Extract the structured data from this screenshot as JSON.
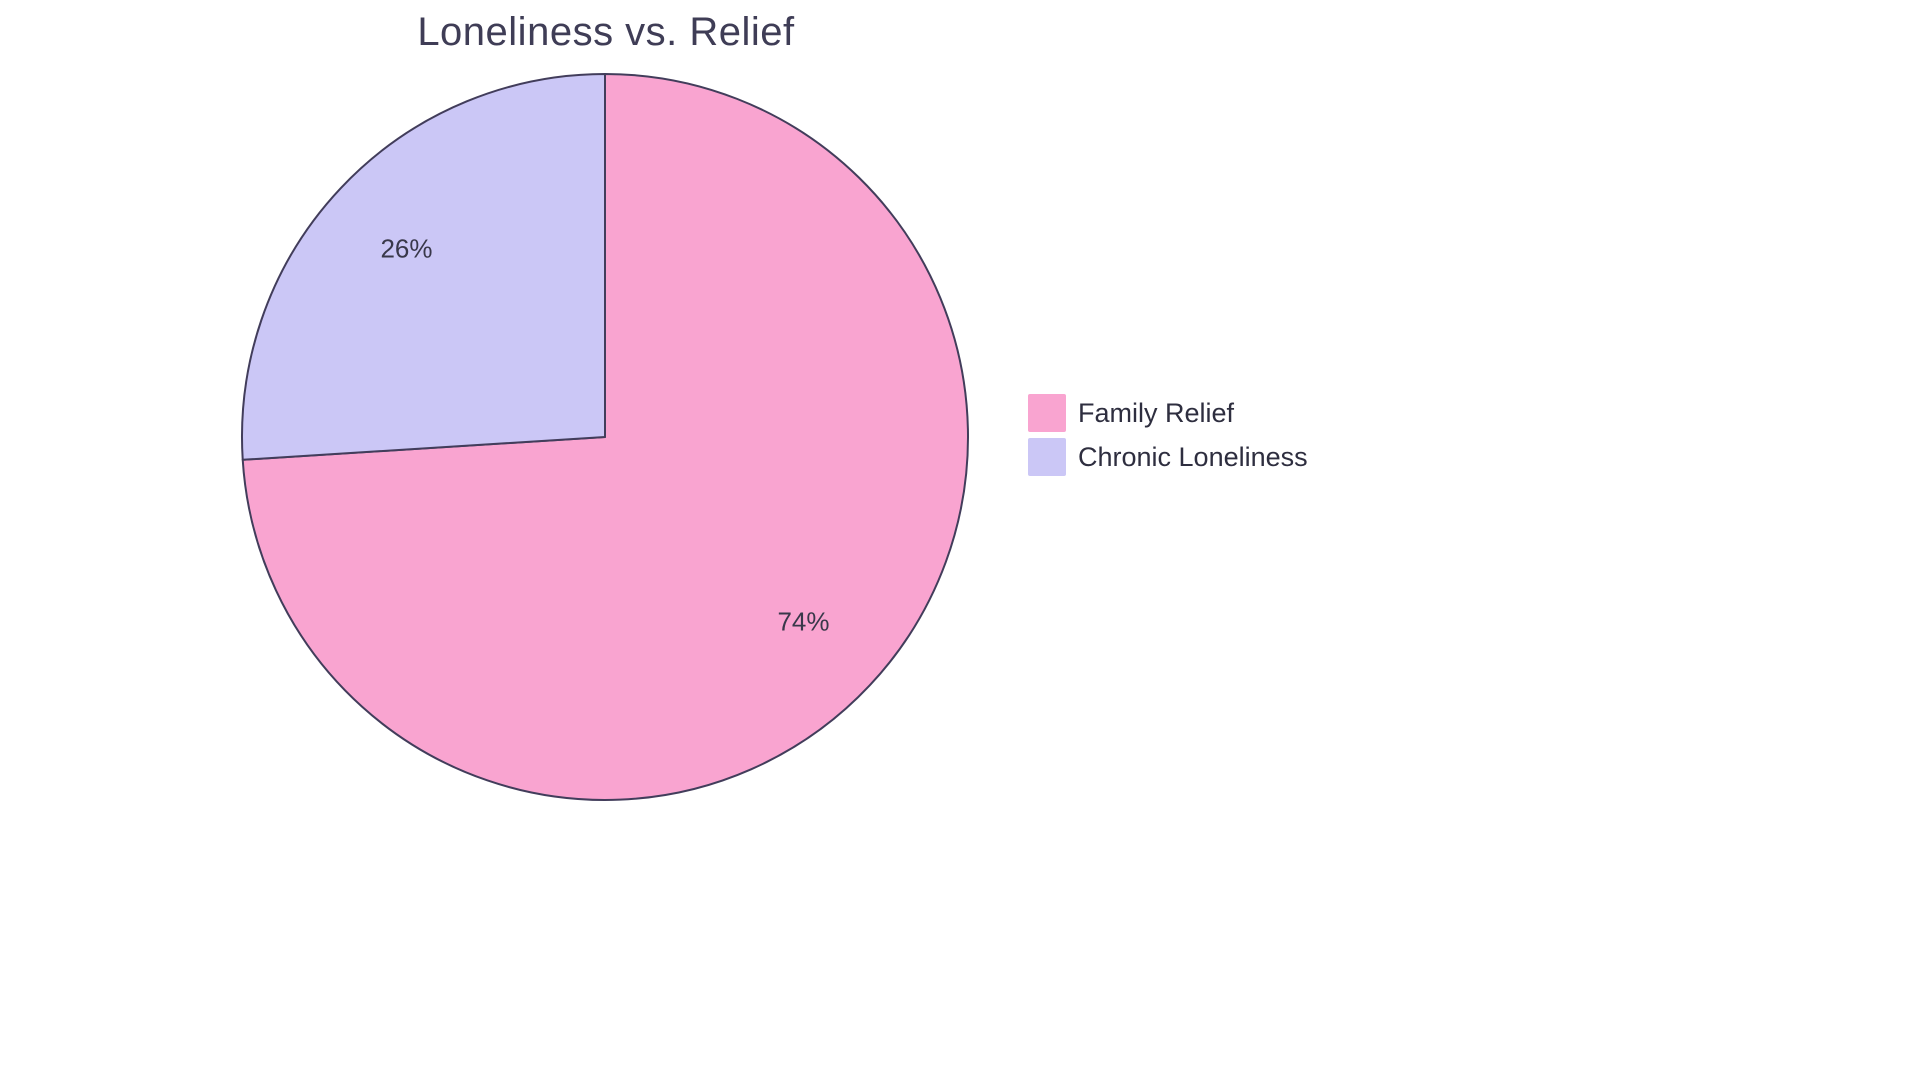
{
  "chart_data": {
    "type": "pie",
    "title": "Loneliness vs. Relief",
    "slices": [
      {
        "label": "Family Relief",
        "value": 74,
        "pct_label": "74%",
        "color": "#F9A4D0"
      },
      {
        "label": "Chronic Loneliness",
        "value": 26,
        "pct_label": "26%",
        "color": "#CBC7F6"
      }
    ],
    "start_angle_deg": 0,
    "direction": "clockwise",
    "stroke_color": "#423D5B",
    "stroke_width": 2,
    "label_color": "#39384A",
    "title_color": "#3F3D56",
    "legend_position": "right",
    "grid": false
  }
}
